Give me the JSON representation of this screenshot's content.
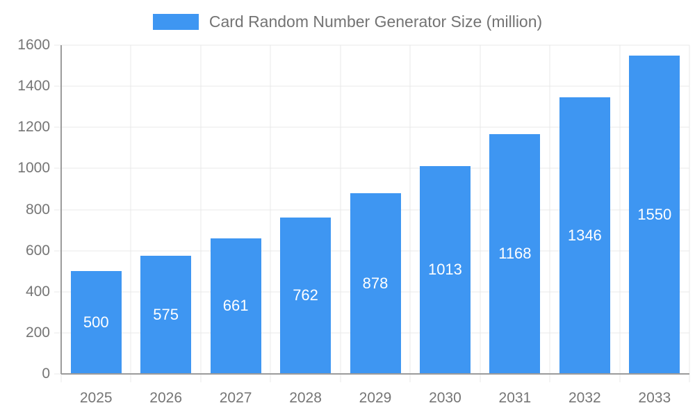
{
  "legend": {
    "label": "Card Random Number Generator Size (million)"
  },
  "colors": {
    "bar": "#3E96F2",
    "grid": "#e8e8e8",
    "axis_y": "#9b9b9b",
    "axis_x": "#b0b0b0",
    "tick_label_text": "#757575",
    "legend_text": "#737373",
    "bar_label_text": "#ffffff",
    "background": "#ffffff"
  },
  "chart_data": {
    "type": "bar",
    "title": "Card Random Number Generator Size (million)",
    "categories": [
      "2025",
      "2026",
      "2027",
      "2028",
      "2029",
      "2030",
      "2031",
      "2032",
      "2033"
    ],
    "values": [
      500,
      575,
      661,
      762,
      878,
      1013,
      1168,
      1346,
      1550
    ],
    "xlabel": "",
    "ylabel": "",
    "ylim": [
      0,
      1600
    ],
    "yticks": [
      0,
      200,
      400,
      600,
      800,
      1000,
      1200,
      1400,
      1600
    ],
    "grid": true,
    "legend_position": "top",
    "bar_labels_inside": true
  }
}
